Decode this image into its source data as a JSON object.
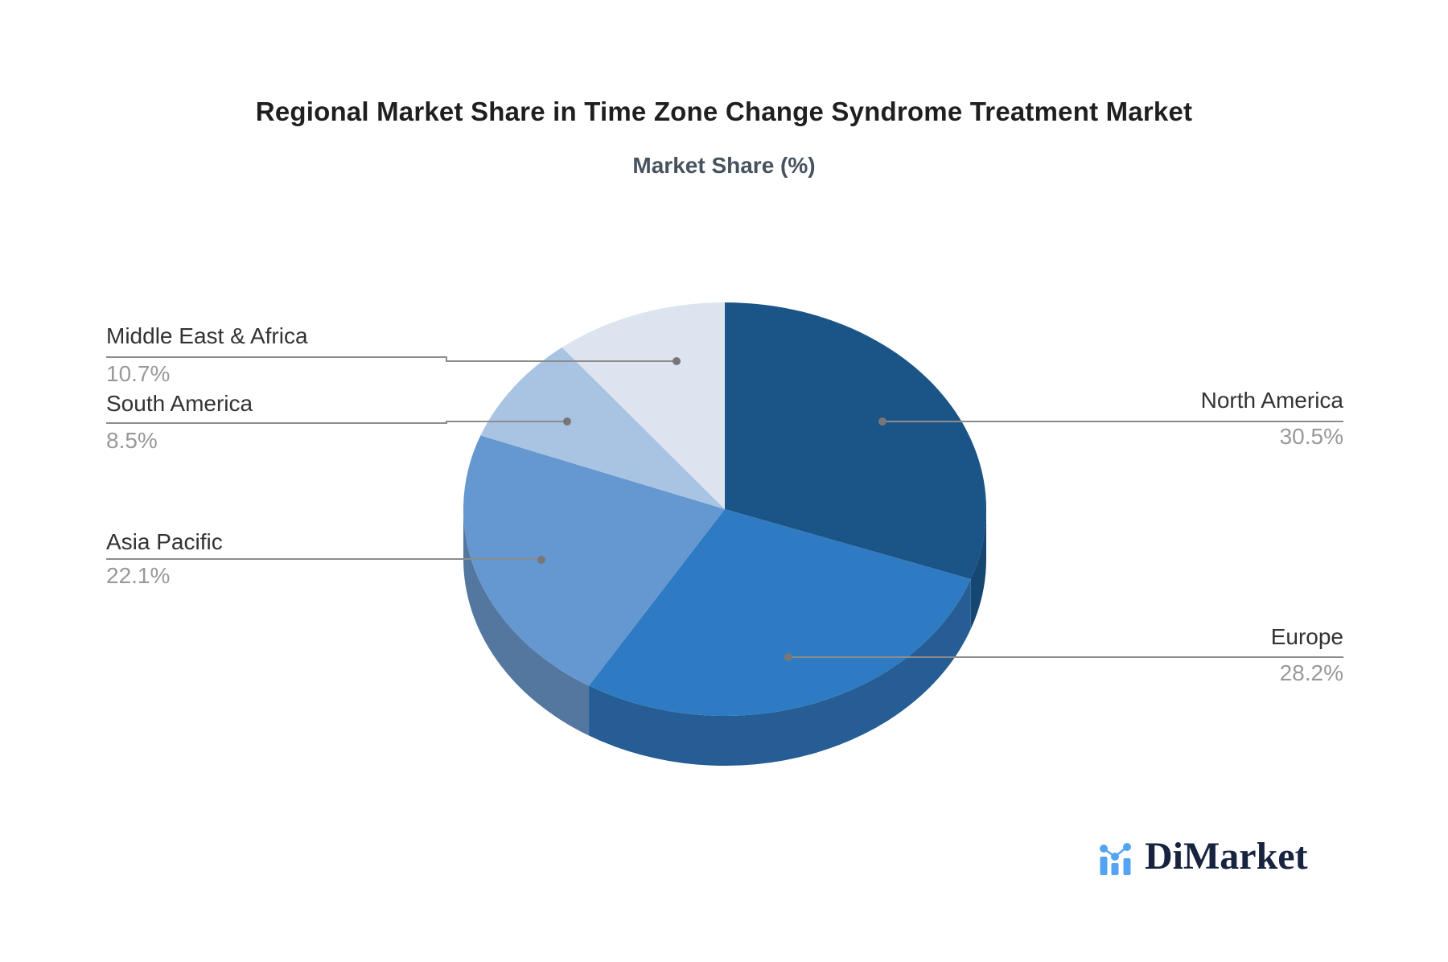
{
  "title": "Regional Market Share in Time Zone Change Syndrome Treatment Market",
  "subtitle": "Market Share (%)",
  "brand": {
    "name": "DiMarket"
  },
  "chart_data": {
    "type": "pie",
    "style": "3d-pie",
    "title": "Regional Market Share in Time Zone Change Syndrome Treatment Market",
    "subtitle": "Market Share (%)",
    "unit": "%",
    "start_angle_deg": 0,
    "clockwise": true,
    "slices": [
      {
        "label": "North America",
        "value": 30.5,
        "pct_label": "30.5%",
        "color": "#1b5487",
        "side_color": "#164672",
        "label_side": "right"
      },
      {
        "label": "Europe",
        "value": 28.2,
        "pct_label": "28.2%",
        "color": "#2e7bc3",
        "side_color": "#255d94",
        "label_side": "right"
      },
      {
        "label": "Asia Pacific",
        "value": 22.1,
        "pct_label": "22.1%",
        "color": "#6597d0",
        "side_color": "#54779f",
        "label_side": "left"
      },
      {
        "label": "South America",
        "value": 8.5,
        "pct_label": "8.5%",
        "color": "#a9c4e2",
        "side_color": null,
        "label_side": "left"
      },
      {
        "label": "Middle East & Africa",
        "value": 10.7,
        "pct_label": "10.7%",
        "color": "#dce4ef",
        "side_color": null,
        "label_side": "left"
      }
    ],
    "leader_line_color": "#8c8c8c",
    "leader_dot_color": "#777777",
    "label_color": "#333333",
    "pct_color": "#999999"
  }
}
